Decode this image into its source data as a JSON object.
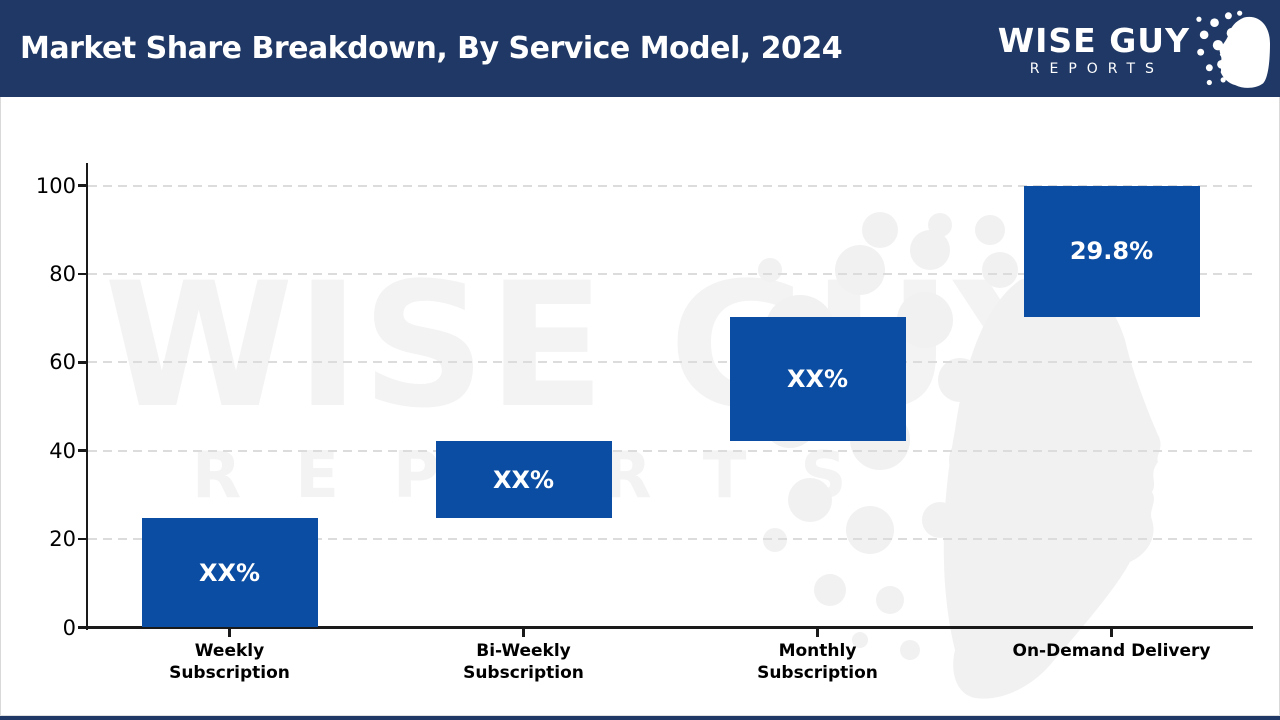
{
  "header": {
    "title": "Market Share Breakdown, By Service Model, 2024",
    "logo": {
      "line1": "WISE GUY",
      "line2": "REPORTS"
    }
  },
  "watermark": {
    "line1": "WISE GUY",
    "line2": "REPORTS"
  },
  "chart_data": {
    "type": "bar",
    "subtype": "waterfall",
    "title": "Market Share Breakdown, By Service Model, 2024",
    "xlabel": "",
    "ylabel": "",
    "ylim": [
      0,
      105
    ],
    "yticks": [
      0,
      20,
      40,
      60,
      80,
      100
    ],
    "grid": "horizontal-dashed",
    "legend": "none",
    "categories": [
      "Weekly\nSubscription",
      "Bi-Weekly\nSubscription",
      "Monthly\nSubscription",
      "On-Demand Delivery"
    ],
    "segments": [
      {
        "category": "Weekly Subscription",
        "start": 0,
        "end": 24.8,
        "value": 24.8,
        "label": "XX%"
      },
      {
        "category": "Bi-Weekly Subscription",
        "start": 24.8,
        "end": 42.1,
        "value": 17.3,
        "label": "XX%"
      },
      {
        "category": "Monthly Subscription",
        "start": 42.1,
        "end": 70.2,
        "value": 28.1,
        "label": "XX%"
      },
      {
        "category": "On-Demand Delivery",
        "start": 70.2,
        "end": 100,
        "value": 29.8,
        "label": "29.8%"
      }
    ]
  },
  "colors": {
    "header_bg": "#1F3865",
    "bar": "#0B4DA2",
    "watermark": "#F1F1F1",
    "gridline": "#DCDCDC",
    "axis": "#1A1A1A"
  }
}
